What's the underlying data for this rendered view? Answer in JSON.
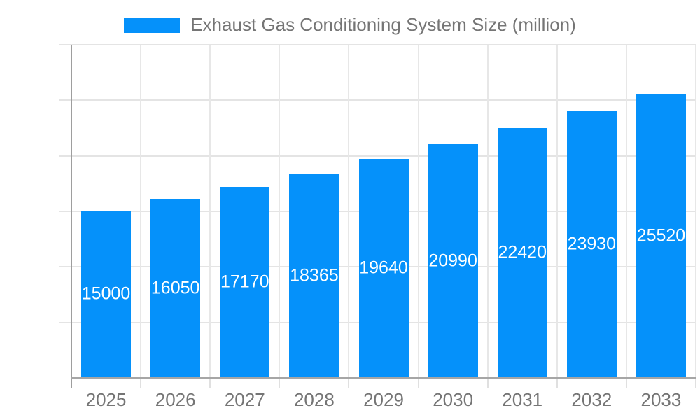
{
  "chart_data": {
    "type": "bar",
    "title": "Exhaust Gas Conditioning System Size (million)",
    "categories": [
      "2025",
      "2026",
      "2027",
      "2028",
      "2029",
      "2030",
      "2031",
      "2032",
      "2033"
    ],
    "series": [
      {
        "name": "Exhaust Gas Conditioning System Size (million)",
        "values": [
          15000,
          16050,
          17170,
          18365,
          19640,
          20990,
          22420,
          23930,
          25520
        ]
      }
    ],
    "xlabel": "",
    "ylabel": "",
    "ylim": [
      0,
      30000
    ],
    "yticks": [
      0,
      5000,
      10000,
      15000,
      20000,
      25000,
      30000
    ],
    "grid": true,
    "legend_position": "top",
    "value_labels_position": "inside-middle"
  },
  "legend": {
    "label": "Exhaust Gas Conditioning System Size (million)"
  },
  "colors": {
    "bar": "#0591fa",
    "grid_line": "#e4e4e4",
    "axis_line": "#a0a0a0",
    "axis_text": "#757575",
    "value_label_text": "#ffffff",
    "background": "#ffffff"
  }
}
